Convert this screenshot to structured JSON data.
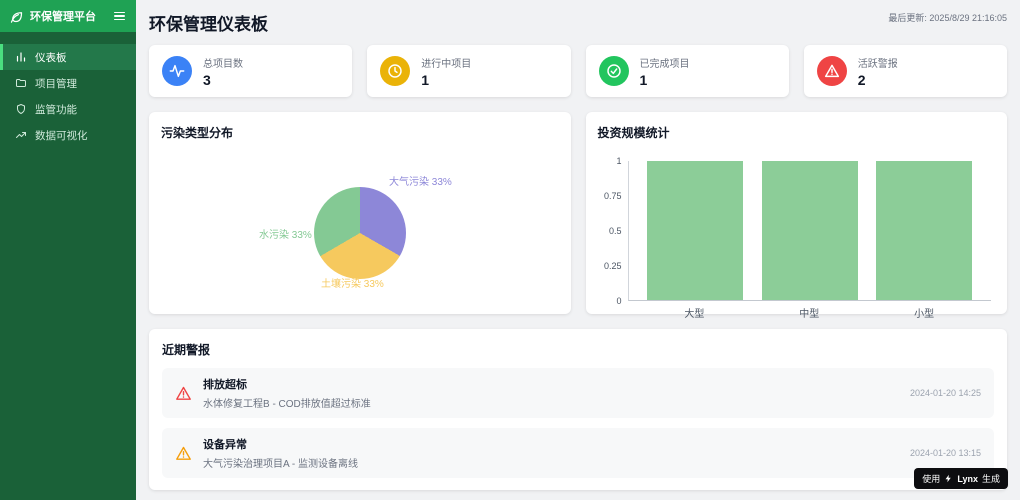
{
  "theme": {
    "page-bg": "#f1f2f4",
    "card-bg": "#ffffff",
    "sidebar-bg": "#1a6138",
    "sidebar-header-bg": "#1fa254",
    "sidebar-active-bg": "#23784a",
    "sidebar-accent": "#4ade80"
  },
  "sidebar": {
    "brand": "环保管理平台",
    "items": [
      {
        "label": "仪表板",
        "icon": "dashboard-bar-chart",
        "active": true
      },
      {
        "label": "项目管理",
        "icon": "folder",
        "active": false
      },
      {
        "label": "监管功能",
        "icon": "shield",
        "active": false
      },
      {
        "label": "数据可视化",
        "icon": "trend-line",
        "active": false
      }
    ]
  },
  "header": {
    "title": "环保管理仪表板",
    "last_updated": "最后更新: 2025/8/29 21:16:05"
  },
  "stats": [
    {
      "label": "总项目数",
      "value": "3",
      "icon": "activity",
      "color": "#3b82f6"
    },
    {
      "label": "进行中项目",
      "value": "1",
      "icon": "clock",
      "color": "#eab308"
    },
    {
      "label": "已完成项目",
      "value": "1",
      "icon": "check-circle",
      "color": "#22c55e"
    },
    {
      "label": "活跃警报",
      "value": "2",
      "icon": "alert-triangle",
      "color": "#ef4444"
    }
  ],
  "chart_data": [
    {
      "type": "pie",
      "title": "污染类型分布",
      "labels": [
        "大气污染",
        "土壤污染",
        "水污染"
      ],
      "values": [
        33.3,
        33.3,
        33.4
      ],
      "unit": "%",
      "colors": [
        "#8d87d8",
        "#f6c95e",
        "#84c994"
      ],
      "display_labels": [
        "大气污染 33%",
        "土壤污染 33%",
        "水污染 33%"
      ],
      "legend_position": "none"
    },
    {
      "type": "bar",
      "title": "投资规模统计",
      "categories": [
        "大型",
        "中型",
        "小型"
      ],
      "values": [
        1,
        1,
        1
      ],
      "ylim": [
        0,
        1
      ],
      "yticks": [
        1,
        0.75,
        0.5,
        0.25,
        0
      ],
      "ytick_labels": [
        "1",
        "0.75",
        "0.5",
        "0.25",
        "0"
      ],
      "bar_color": "#8ccd98",
      "grid": false
    }
  ],
  "alerts": {
    "title": "近期警报",
    "items": [
      {
        "title": "排放超标",
        "desc": "水体修复工程B - COD排放值超过标准",
        "time": "2024-01-20 14:25",
        "severity": "high",
        "color": "#ef4444"
      },
      {
        "title": "设备异常",
        "desc": "大气污染治理项目A - 监测设备离线",
        "time": "2024-01-20 13:15",
        "severity": "medium",
        "color": "#f59e0b"
      }
    ]
  },
  "badge": {
    "prefix": "使用",
    "brand": "Lynx",
    "suffix": "生成"
  }
}
